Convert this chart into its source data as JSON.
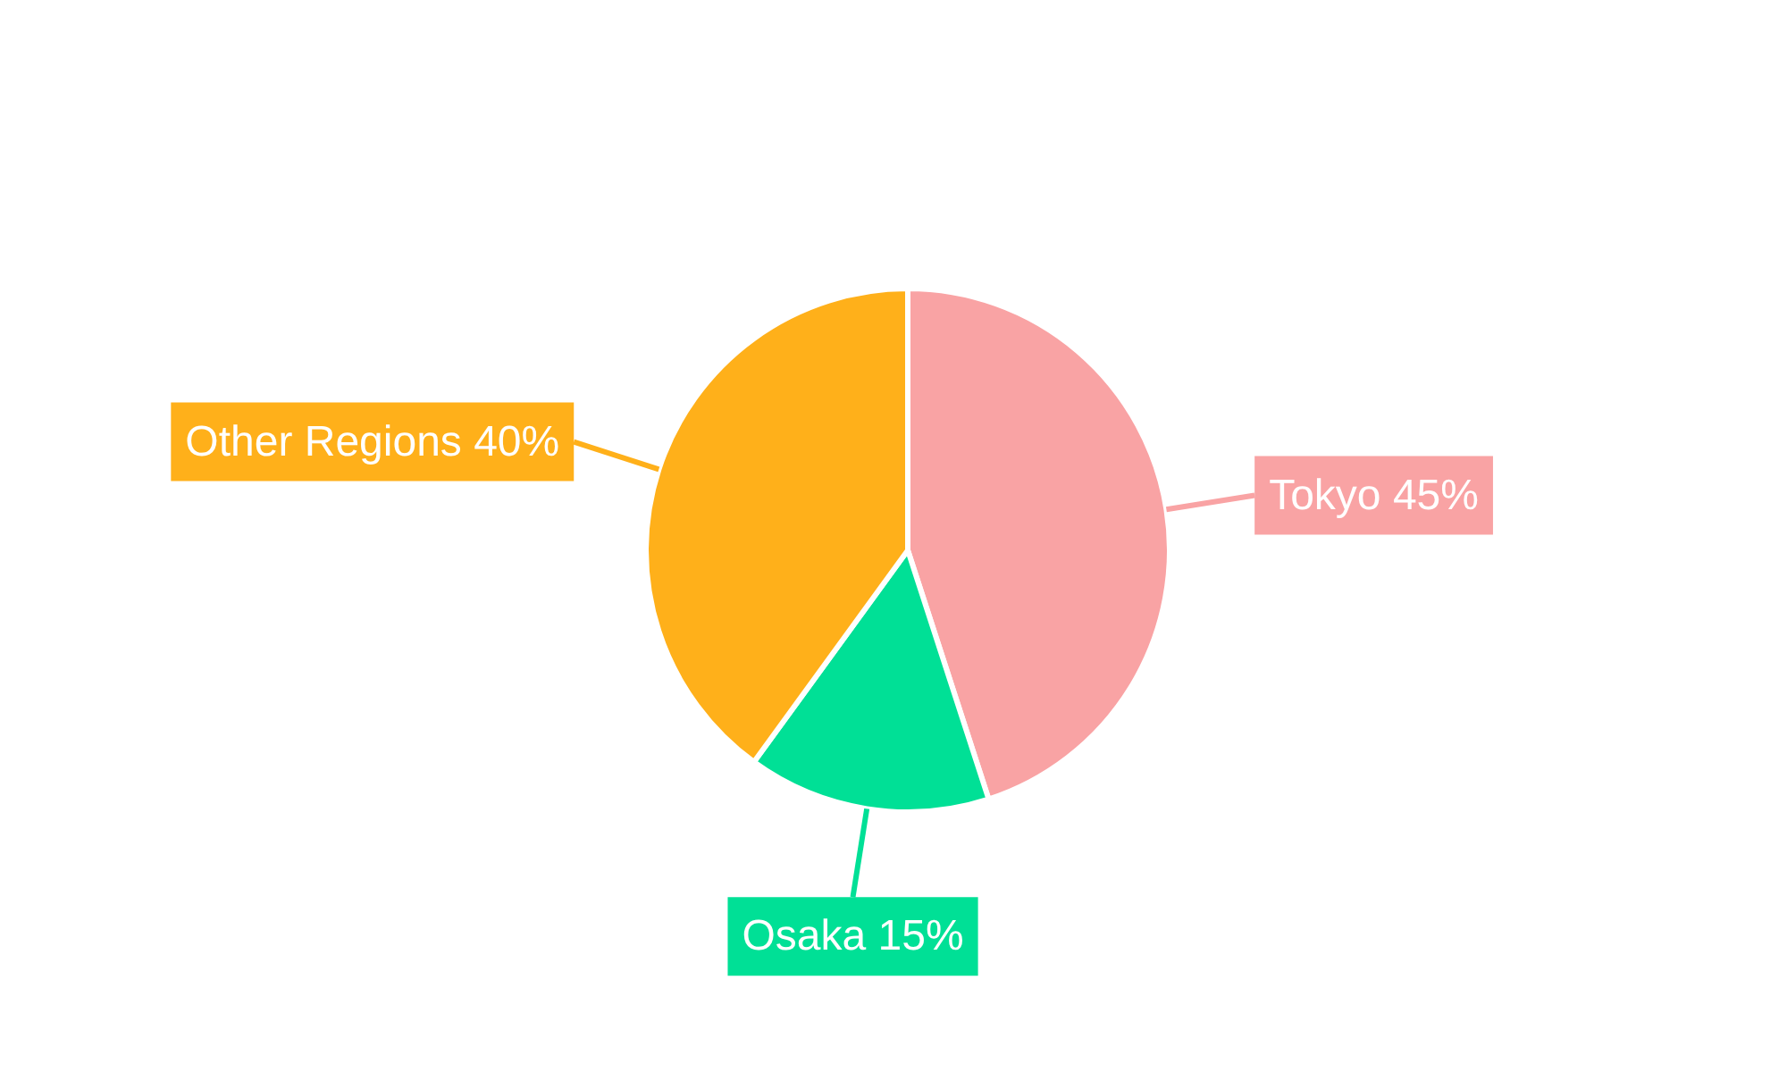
{
  "chart_data": {
    "type": "pie",
    "categories": [
      "Tokyo",
      "Osaka",
      "Other Regions"
    ],
    "values": [
      45,
      15,
      40
    ],
    "value_labels": [
      "45%",
      "15%",
      "40%"
    ],
    "colors": [
      "#f9a3a4",
      "#00e096",
      "#ffb01a"
    ],
    "legend": false
  }
}
